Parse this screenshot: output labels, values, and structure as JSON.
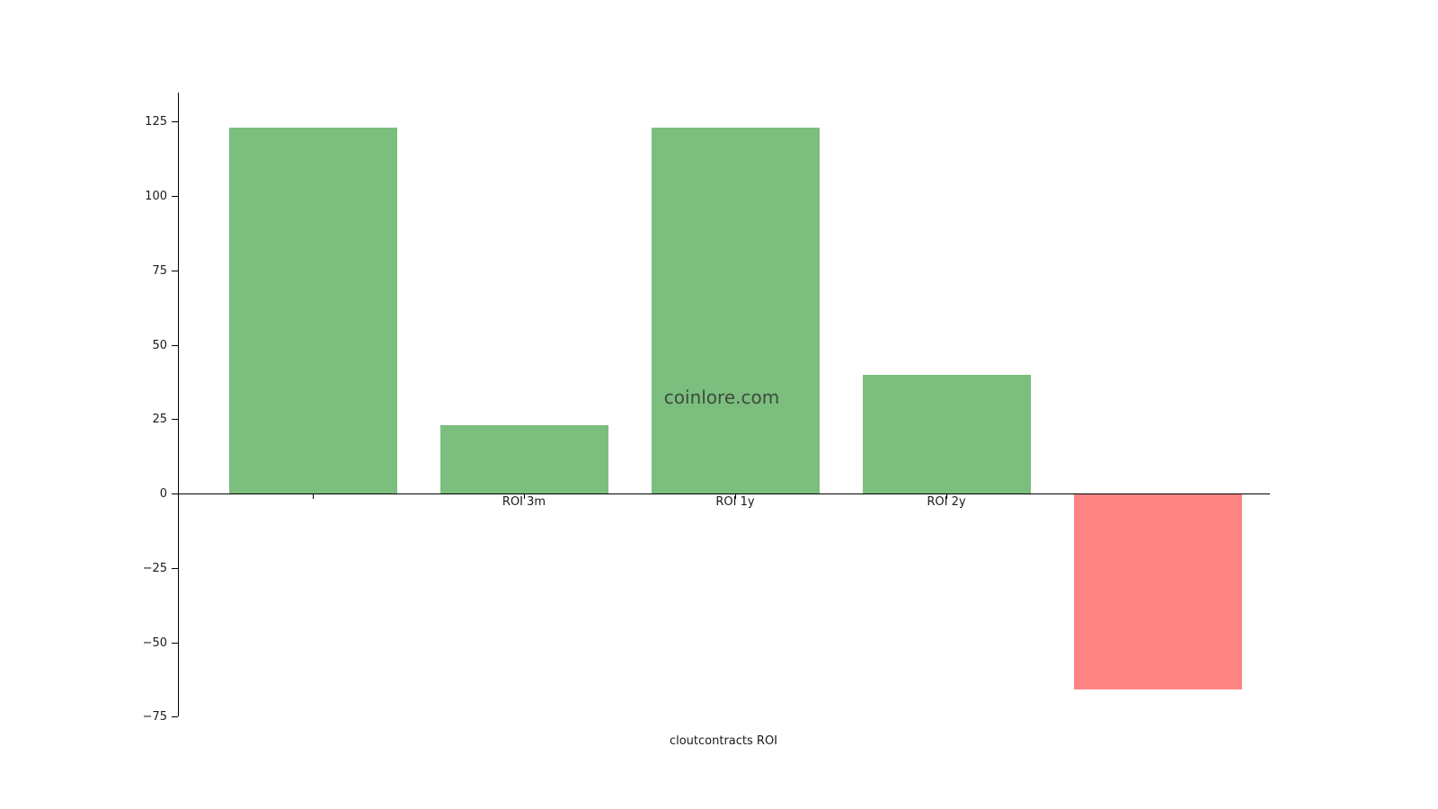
{
  "watermark": "coinlore.com",
  "chart_data": {
    "type": "bar",
    "title": "",
    "xlabel": "cloutcontracts ROI",
    "ylabel": "",
    "categories": [
      "",
      "ROI 3m",
      "ROI 1y",
      "ROI 2y",
      ""
    ],
    "values": [
      123,
      23,
      123,
      40,
      -66
    ],
    "yticks": [
      125,
      100,
      75,
      50,
      25,
      0,
      -25,
      -50,
      -75
    ],
    "ylim": [
      -75,
      134
    ],
    "grid": false,
    "legend": "none",
    "watermark": "coinlore.com",
    "colors": {
      "positive": "#7cbe7d",
      "negative": "#ff8585",
      "axis": "#000000",
      "tick_label": "#1a1a1a"
    }
  }
}
